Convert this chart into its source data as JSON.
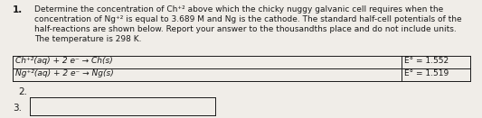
{
  "title_number": "1.",
  "line1": "Determine the concentration of Ch⁺² above which the chicky nuggy galvanic cell requires when the",
  "line2": "concentration of Ng⁺² is equal to 3.689 M and Ng is the cathode. The standard half-cell potentials of the",
  "line3": "half-reactions are shown below. Report your answer to the thousandths place and do not include units.",
  "line4": "The temperature is 298 K.",
  "table_row1_left": "Ch⁺²(aq) + 2 e⁻ → Ch(s)",
  "table_row1_right": "E° = 1.552",
  "table_row2_left": "Ng⁺²(aq) + 2 e⁻ → Ng(s)",
  "table_row2_right": "E° = 1.519",
  "label2": "2.",
  "label3": "3.",
  "bg_color": "#f0ede8",
  "text_color": "#1a1a1a",
  "font_size_body": 6.5,
  "font_size_table": 6.5,
  "font_size_number": 7.5
}
